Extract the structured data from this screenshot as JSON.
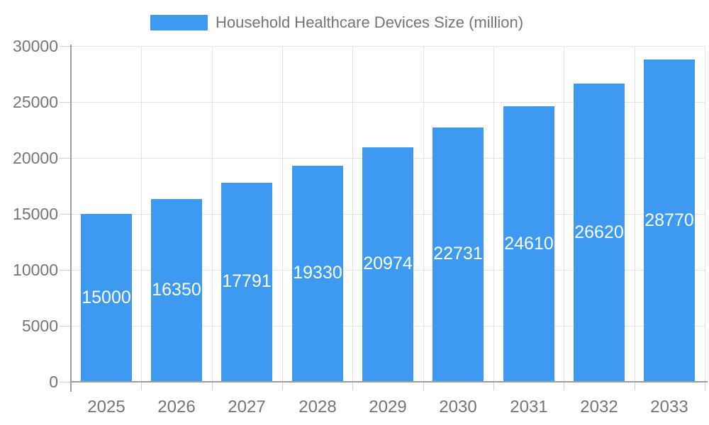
{
  "chart_data": {
    "type": "bar",
    "title": "Household Healthcare Devices Size (million)",
    "categories": [
      "2025",
      "2026",
      "2027",
      "2028",
      "2029",
      "2030",
      "2031",
      "2032",
      "2033"
    ],
    "values": [
      15000,
      16350,
      17791,
      19330,
      20974,
      22731,
      24610,
      26620,
      28770
    ],
    "series": [
      {
        "name": "Household Healthcare Devices Size (million)",
        "values": [
          15000,
          16350,
          17791,
          19330,
          20974,
          22731,
          24610,
          26620,
          28770
        ]
      }
    ],
    "xlabel": "",
    "ylabel": "",
    "ylim": [
      0,
      30000
    ],
    "yticks": [
      0,
      5000,
      10000,
      15000,
      20000,
      25000,
      30000
    ],
    "grid": true,
    "legend_position": "top",
    "value_label_position": "inside-middle",
    "colors": {
      "bar": "#3D9AF0",
      "axis_line": "#9E9E9E",
      "gridline": "#E4E4E4",
      "tick": "#CFCFCF",
      "label_text": "#757575",
      "value_text": "#FFFFFF",
      "background": "#FFFFFF"
    }
  }
}
